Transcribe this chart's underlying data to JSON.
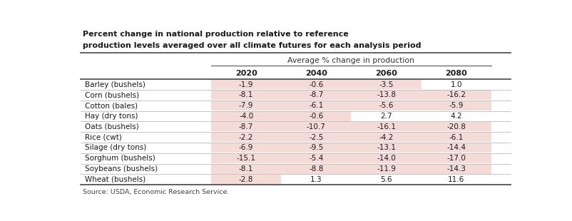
{
  "title_line1": "Percent change in national production relative to reference",
  "title_line2": "production levels averaged over all climate futures for each analysis period",
  "subtitle": "Average % change in production",
  "source": "Source: USDA, Economic Research Service.",
  "columns": [
    "",
    "2020",
    "2040",
    "2060",
    "2080"
  ],
  "rows": [
    [
      "Barley (bushels)",
      "-1.9",
      "-0.6",
      "-3.5",
      "1.0"
    ],
    [
      "Corn (bushels)",
      "-8.1",
      "-8.7",
      "-13.8",
      "-16.2"
    ],
    [
      "Cotton (bales)",
      "-7.9",
      "-6.1",
      "-5.6",
      "-5.9"
    ],
    [
      "Hay (dry tons)",
      "-4.0",
      "-0.6",
      "2.7",
      "4.2"
    ],
    [
      "Oats (bushels)",
      "-8.7",
      "-10.7",
      "-16.1",
      "-20.8"
    ],
    [
      "Rice (cwt)",
      "-2.2",
      "-2.5",
      "-4.2",
      "-6.1"
    ],
    [
      "Silage (dry tons)",
      "-6.9",
      "-9.5",
      "-13.1",
      "-14.4"
    ],
    [
      "Sorghum (bushels)",
      "-15.1",
      "-5.4",
      "-14.0",
      "-17.0"
    ],
    [
      "Soybeans (bushels)",
      "-8.1",
      "-8.8",
      "-11.9",
      "-14.3"
    ],
    [
      "Wheat (bushels)",
      "-2.8",
      "1.3",
      "5.6",
      "11.6"
    ]
  ],
  "neg_color": "#f5dbd7",
  "pos_color": "#ffffff",
  "row_line_color": "#bbbbbb",
  "bold_line_color": "#555555",
  "fig_bg": "#ffffff"
}
